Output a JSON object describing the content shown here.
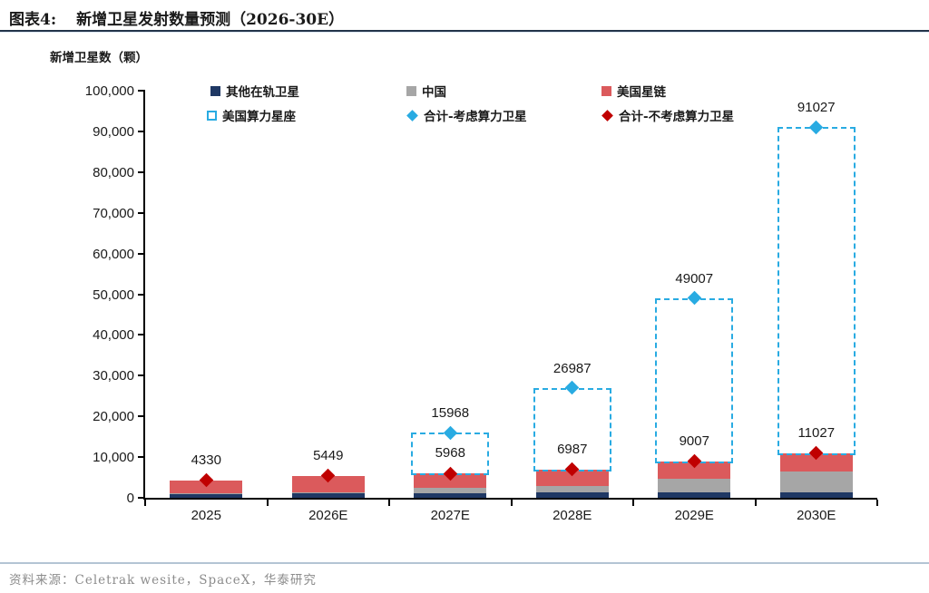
{
  "header": {
    "title_prefix": "图表4:",
    "title_main": "新增卫星发射数量预测（2026-30E）"
  },
  "axis_title": "新增卫星数（颗）",
  "legend": [
    {
      "label": "其他在轨卫星",
      "type": "square",
      "color": "#1F3864"
    },
    {
      "label": "中国",
      "type": "square",
      "color": "#A6A6A6"
    },
    {
      "label": "美国星链",
      "type": "square",
      "color": "#DB5A5C"
    },
    {
      "label": "美国算力星座",
      "type": "dashed-square",
      "color": "#29ABE2"
    },
    {
      "label": "合计-考虑算力卫星",
      "type": "diamond",
      "color": "#29ABE2"
    },
    {
      "label": "合计-不考虑算力卫星",
      "type": "diamond",
      "color": "#C00000"
    }
  ],
  "source": "资料来源：Celetrak wesite，SpaceX，华泰研究",
  "chart_data": {
    "type": "bar",
    "stacked": true,
    "categories": [
      "2025",
      "2026E",
      "2027E",
      "2028E",
      "2029E",
      "2030E"
    ],
    "series": [
      {
        "name": "其他在轨卫星",
        "color": "#1F3864",
        "values": [
          1050,
          1100,
          1200,
          1300,
          1350,
          1350
        ]
      },
      {
        "name": "中国",
        "color": "#A6A6A6",
        "values": [
          80,
          349,
          1300,
          1700,
          3300,
          5200
        ]
      },
      {
        "name": "美国星链",
        "color": "#DB5A5C",
        "values": [
          3200,
          4000,
          3468,
          3987,
          4357,
          4477
        ]
      },
      {
        "name": "美国算力星座",
        "color": "#29ABE2",
        "style": "dashed-outline",
        "values": [
          0,
          0,
          10000,
          20000,
          40000,
          80000
        ]
      }
    ],
    "totals_excl_compute": {
      "name": "合计-不考虑算力卫星",
      "color": "#C00000",
      "values": [
        4330,
        5449,
        5968,
        6987,
        9007,
        11027
      ]
    },
    "totals_incl_compute": {
      "name": "合计-考虑算力卫星",
      "color": "#29ABE2",
      "values": [
        null,
        null,
        15968,
        26987,
        49007,
        91027
      ]
    },
    "title": "新增卫星发射数量预测（2026-30E）",
    "xlabel": "",
    "ylabel": "新增卫星数（颗）",
    "ylim": [
      0,
      100000
    ],
    "ytick_step": 10000,
    "grid": false,
    "legend_position": "top"
  }
}
